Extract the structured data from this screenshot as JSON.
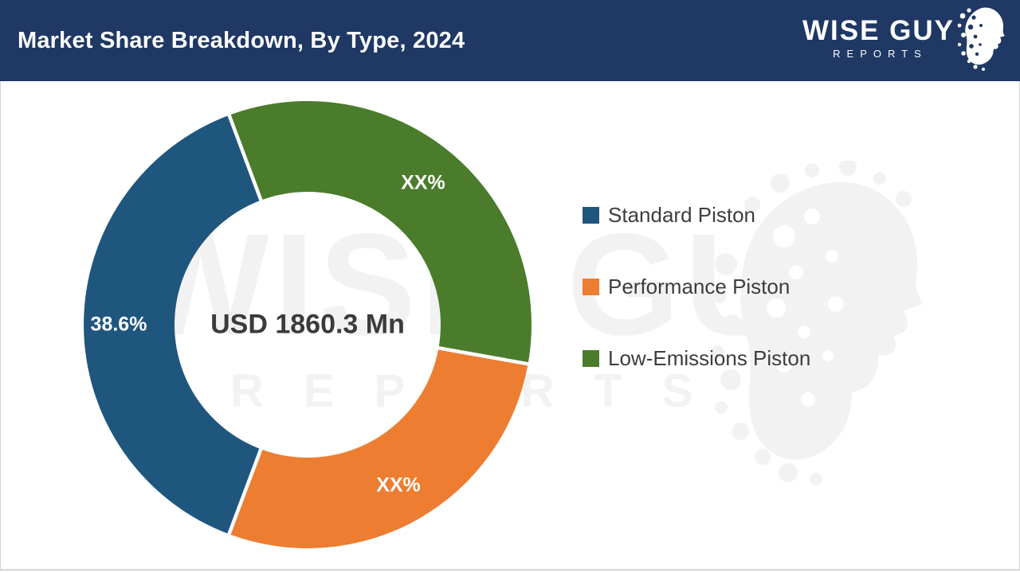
{
  "header": {
    "title": "Market Share Breakdown, By Type, 2024",
    "logo": {
      "line1": "WISE GUY",
      "line2": "REPORTS"
    }
  },
  "watermark": {
    "line1": "WISE GUY",
    "line2": "REPORTS"
  },
  "chart_data": {
    "type": "pie",
    "style": "donut",
    "title": "Market Share Breakdown, By Type, 2024",
    "center_label": "USD 1860.3 Mn",
    "total_value": 1860.3,
    "total_units": "USD Mn",
    "direction": "clockwise",
    "start_angle_deg": -20.5,
    "legend_position": "right",
    "segments": [
      {
        "label": "Low-Emissions Piston",
        "display_value": "XX%",
        "share_pct_est": 33.5,
        "color": "#4A7C2B"
      },
      {
        "label": "Performance Piston",
        "display_value": "XX%",
        "share_pct_est": 27.9,
        "color": "#ED7D31"
      },
      {
        "label": "Standard Piston",
        "display_value": "38.6%",
        "share_pct_est": 38.6,
        "color": "#1F567E"
      }
    ]
  },
  "legend": {
    "items": [
      {
        "label": "Standard Piston",
        "color": "#1F567E"
      },
      {
        "label": "Performance Piston",
        "color": "#ED7D31"
      },
      {
        "label": "Low-Emissions Piston",
        "color": "#4A7C2B"
      }
    ]
  },
  "theme": {
    "header_bg": "#1F3864",
    "watermark_color": "#F2F2F2",
    "text_dark": "#3B3B3B",
    "separator_white": "#FFFFFF"
  }
}
